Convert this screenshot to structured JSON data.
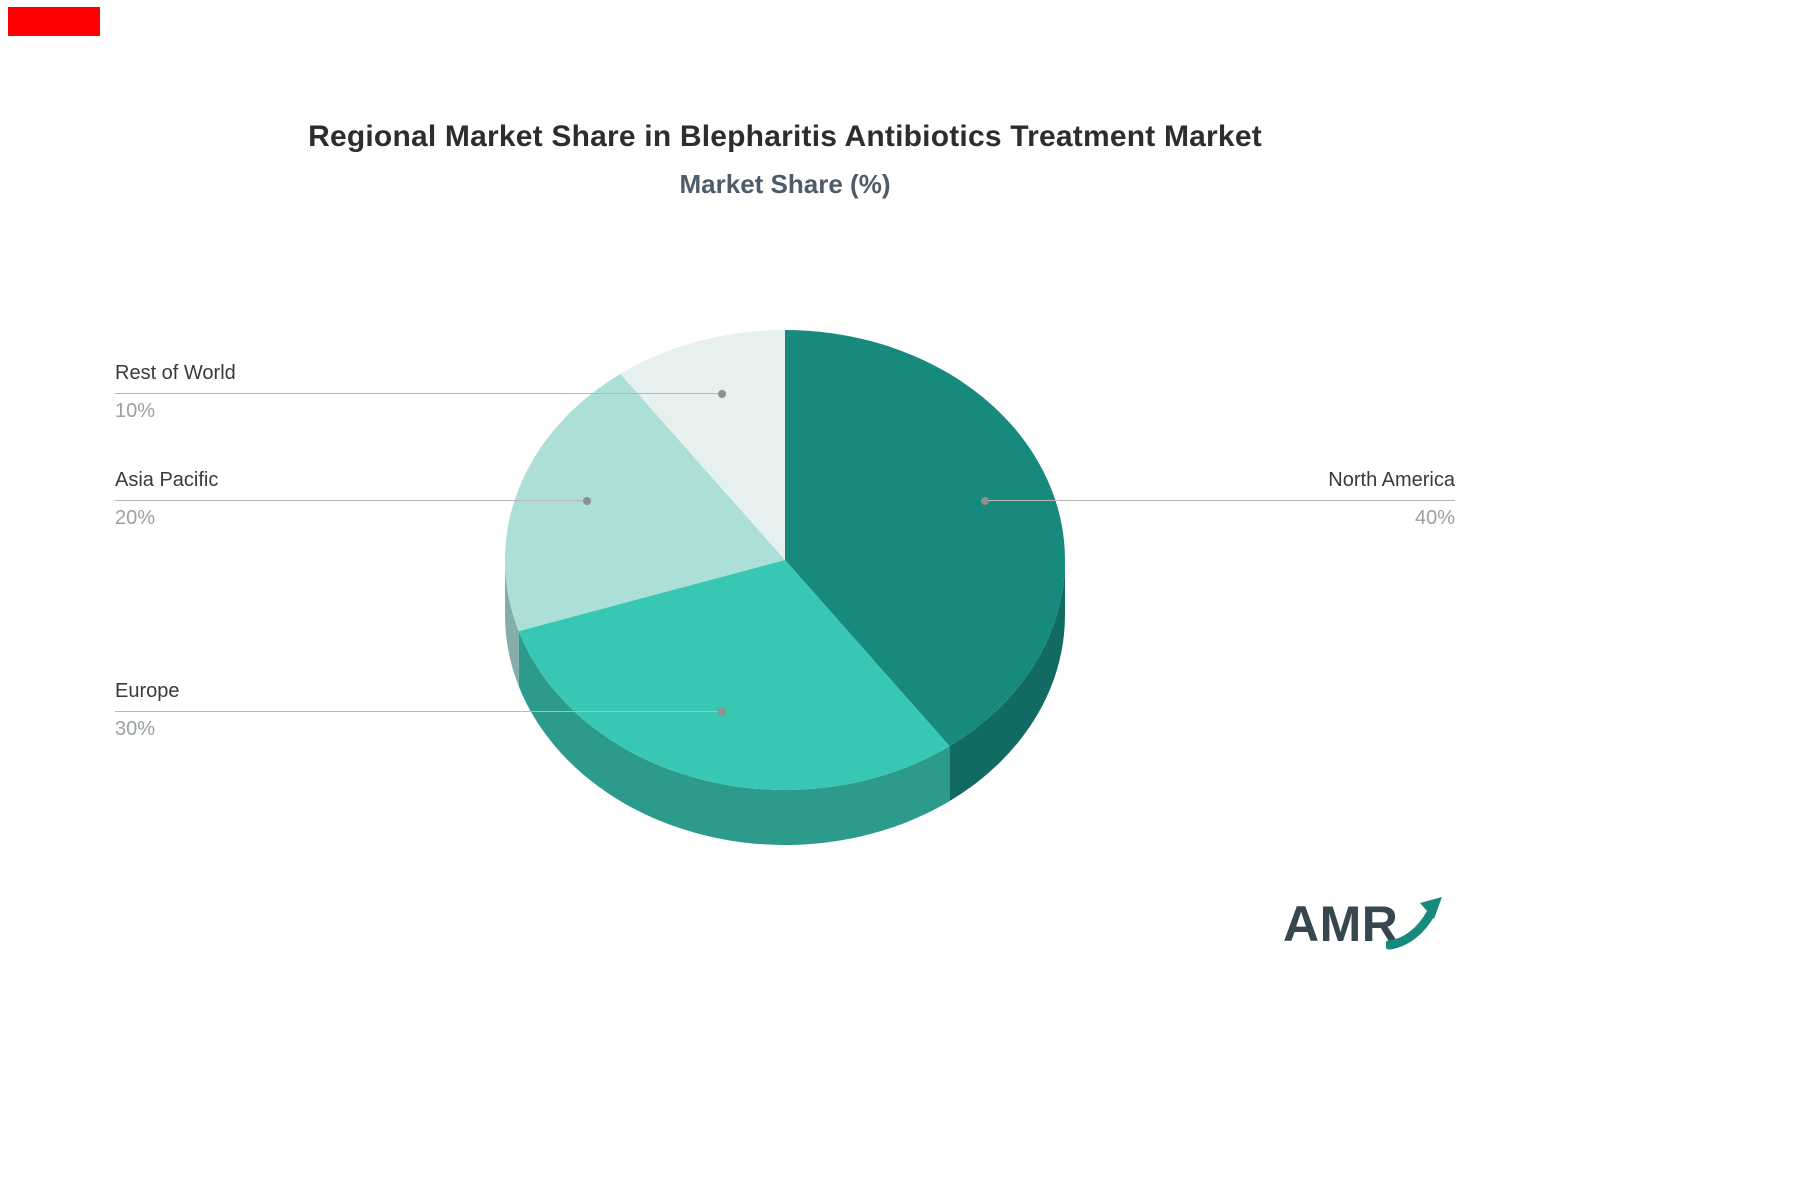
{
  "chart_data": {
    "type": "pie",
    "title": "Regional Market Share in Blepharitis Antibiotics Treatment Market",
    "subtitle": "Market Share (%)",
    "unit": "%",
    "start_angle_deg": 0,
    "direction": "clockwise",
    "labels_position": "outside-with-leader-lines",
    "style": "3d-pie",
    "slices": [
      {
        "label": "North America",
        "value": 40,
        "percent_label": "40%",
        "color": "#17897d"
      },
      {
        "label": "Europe",
        "value": 30,
        "percent_label": "30%",
        "color": "#38c7b3"
      },
      {
        "label": "Asia Pacific",
        "value": 20,
        "percent_label": "20%",
        "color": "#abdfd7"
      },
      {
        "label": "Rest of World",
        "value": 10,
        "percent_label": "10%",
        "color": "#e6f0ee"
      }
    ]
  },
  "decoration": {
    "top_left_bar_color": "#fe0000"
  },
  "logo": {
    "text": "AMR",
    "text_color": "#36474f",
    "arrow_color": "#17897d"
  }
}
